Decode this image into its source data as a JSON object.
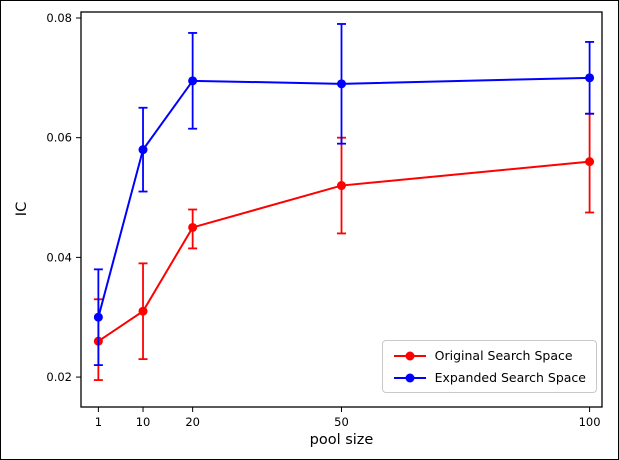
{
  "chart_data": {
    "type": "line",
    "title": "",
    "xlabel": "pool size",
    "ylabel": "IC",
    "x": [
      1,
      10,
      20,
      50,
      100
    ],
    "xticks": [
      1,
      10,
      20,
      50,
      100
    ],
    "xtick_labels": [
      "1",
      "10",
      "20",
      "50",
      "100"
    ],
    "yticks": [
      0.02,
      0.04,
      0.06,
      0.08
    ],
    "ytick_labels": [
      "0.02",
      "0.04",
      "0.06",
      "0.08"
    ],
    "xlim": [
      -2.5,
      102.5
    ],
    "ylim": [
      0.015,
      0.081
    ],
    "grid": false,
    "legend_position": "lower right",
    "series": [
      {
        "name": "Original Search Space",
        "color": "#ff0000",
        "values": [
          0.026,
          0.031,
          0.045,
          0.052,
          0.056
        ],
        "err_low": [
          0.0065,
          0.008,
          0.0035,
          0.008,
          0.0085
        ],
        "err_high": [
          0.007,
          0.008,
          0.003,
          0.008,
          0.008
        ]
      },
      {
        "name": "Expanded Search Space",
        "color": "#0000ff",
        "values": [
          0.03,
          0.058,
          0.0695,
          0.069,
          0.07
        ],
        "err_low": [
          0.008,
          0.007,
          0.008,
          0.01,
          0.006
        ],
        "err_high": [
          0.008,
          0.007,
          0.008,
          0.01,
          0.006
        ]
      }
    ]
  }
}
